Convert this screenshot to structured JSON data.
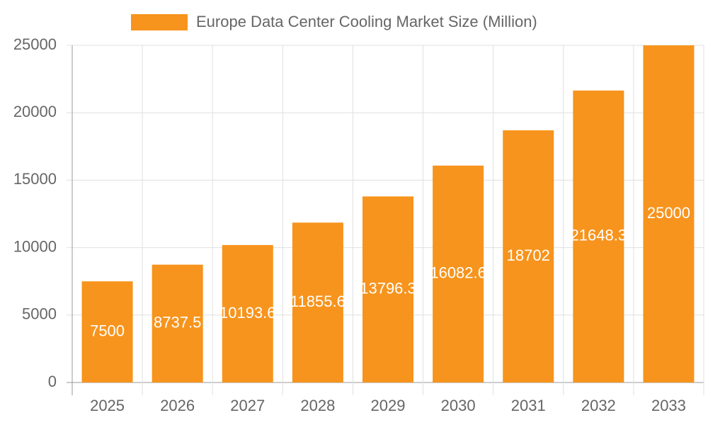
{
  "chart_data": {
    "type": "bar",
    "categories": [
      "2025",
      "2026",
      "2027",
      "2028",
      "2029",
      "2030",
      "2031",
      "2032",
      "2033"
    ],
    "series": [
      {
        "name": "Europe Data Center Cooling Market Size (Million)",
        "color": "#f7941d",
        "values": [
          7500,
          8737.5,
          10193.6,
          11855.6,
          13796.3,
          16082.6,
          18702,
          21648.3,
          25000
        ]
      }
    ],
    "ylim": [
      0,
      25000
    ],
    "yticks": [
      0,
      5000,
      10000,
      15000,
      20000,
      25000
    ],
    "grid": true,
    "legend": "top"
  }
}
